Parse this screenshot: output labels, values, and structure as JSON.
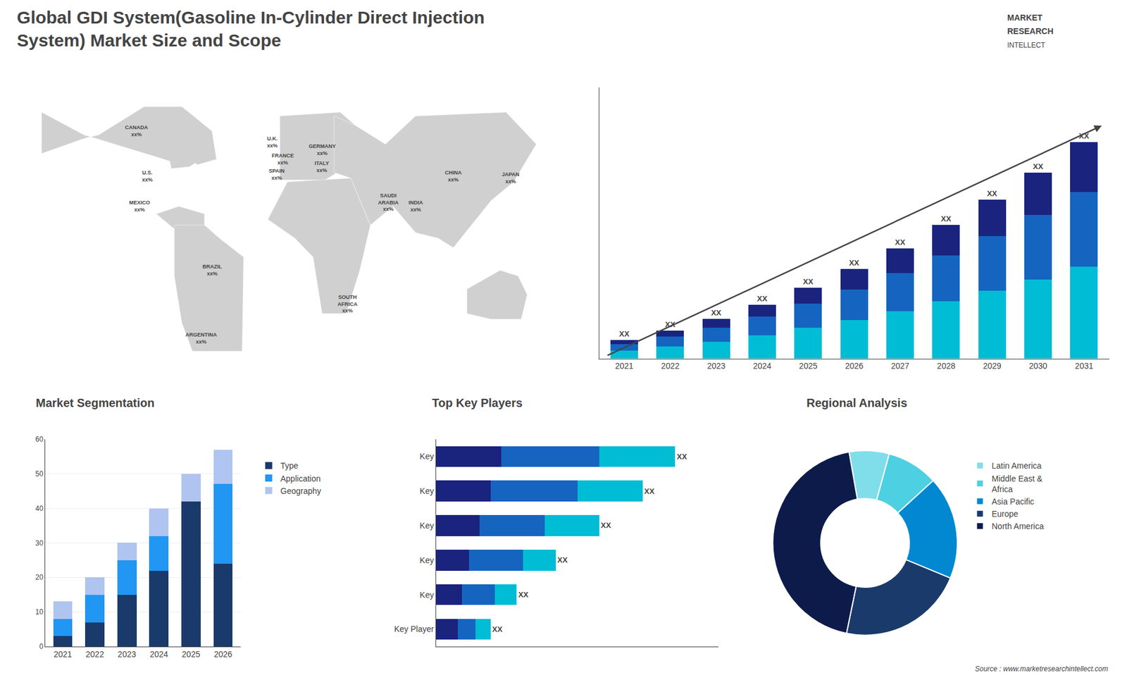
{
  "chart_data": [
    {
      "type": "bar",
      "title": "Global GDI System(Gasoline In-Cylinder Direct Injection\nSystem) Market Size and Scope",
      "categories": [
        "2021",
        "2022",
        "2023",
        "2024",
        "2025",
        "2026",
        "2027",
        "2028",
        "2029",
        "2030",
        "2031"
      ],
      "series": [
        {
          "color": "#00bcd4",
          "values": [
            1.0,
            1.5,
            2.1,
            2.9,
            3.8,
            4.8,
            5.9,
            7.1,
            8.4,
            9.8,
            11.4
          ]
        },
        {
          "color": "#1565c0",
          "values": [
            0.8,
            1.2,
            1.7,
            2.3,
            3.0,
            3.8,
            4.7,
            5.7,
            6.8,
            8.0,
            9.3
          ]
        },
        {
          "color": "#1a237e",
          "values": [
            0.5,
            0.8,
            1.1,
            1.5,
            2.0,
            2.5,
            3.1,
            3.8,
            4.5,
            5.3,
            6.2
          ],
          "value_labels": [
            "XX",
            "XX",
            "XX",
            "XX",
            "XX",
            "XX",
            "XX",
            "XX",
            "XX",
            "XX",
            "XX"
          ]
        }
      ],
      "stacked": true,
      "ylim": [
        0,
        33.625
      ],
      "yticks": [],
      "grid": false,
      "tick_labels": "x",
      "annotations": [
        "MARKET",
        "RESEARCH",
        "INTELLECT",
        "Source : www.marketresearchintellect.com"
      ]
    },
    {
      "type": "map",
      "annotations": [
        "CANADA\nxx%",
        "U.S.\nxx%",
        "MEXICO\nxx%",
        "BRAZIL\nxx%",
        "ARGENTINA\nxx%",
        "U.K.\nxx%",
        "FRANCE\nxx%",
        "SPAIN\nxx%",
        "GERMANY\nxx%",
        "ITALY\nxx%",
        "SAUDI\nARABIA\nxx%",
        "SOUTH\nAFRICA\nxx%",
        "CHINA\nxx%",
        "INDIA\nxx%",
        "JAPAN\nxx%"
      ],
      "color": "#d0d0d0",
      "xlim": [
        -180,
        180
      ],
      "ylim": [
        -65,
        85
      ],
      "tick_labels": false
    },
    {
      "type": "bar",
      "title": "Market Segmentation",
      "categories": [
        "2021",
        "2022",
        "2023",
        "2024",
        "2025",
        "2026"
      ],
      "series": [
        {
          "name": "Type",
          "color": "#1a3a6b",
          "values": [
            3,
            7,
            15,
            22,
            42,
            24
          ]
        },
        {
          "name": "Application",
          "color": "#2196f3",
          "values": [
            5,
            8,
            10,
            10,
            0,
            23
          ]
        },
        {
          "name": "Geography",
          "color": "#b0c4f0",
          "values": [
            5,
            5,
            5,
            8,
            8,
            10
          ]
        }
      ],
      "stacked": true,
      "ylim": [
        0,
        60
      ],
      "yticks": [
        0,
        10,
        20,
        30,
        40,
        50,
        60
      ],
      "grid": true,
      "legend": "right"
    },
    {
      "type": "bar",
      "title": "Top Key Players",
      "orientation": "horizontal",
      "categories": [
        "Key",
        "Key",
        "Key",
        "Key",
        "Key",
        "Key Player"
      ],
      "series": [
        {
          "color": "#1a237e",
          "values": [
            3.0,
            2.5,
            2.0,
            1.5,
            1.2,
            1.0
          ]
        },
        {
          "color": "#1565c0",
          "values": [
            4.5,
            4.0,
            3.0,
            2.5,
            1.5,
            0.8
          ]
        },
        {
          "color": "#00bcd4",
          "values": [
            3.5,
            3.0,
            2.5,
            1.5,
            1.0,
            0.7
          ],
          "value_labels": [
            "XX",
            "XX",
            "XX",
            "XX",
            "XX",
            "XX"
          ]
        }
      ],
      "stacked": true,
      "xlim": [
        0,
        13
      ],
      "xticks": [],
      "grid": false,
      "tick_labels": "y"
    },
    {
      "type": "pie",
      "title": "Regional Analysis",
      "categories": [
        "Latin America",
        "Middle East &\nAfrica",
        "Asia Pacific",
        "Europe",
        "North America"
      ],
      "values": [
        7,
        9,
        18,
        22,
        44
      ],
      "colors": [
        "#80deea",
        "#4dd0e1",
        "#0288d1",
        "#1a3a6b",
        "#0d1b4b"
      ],
      "legend": "right"
    }
  ]
}
